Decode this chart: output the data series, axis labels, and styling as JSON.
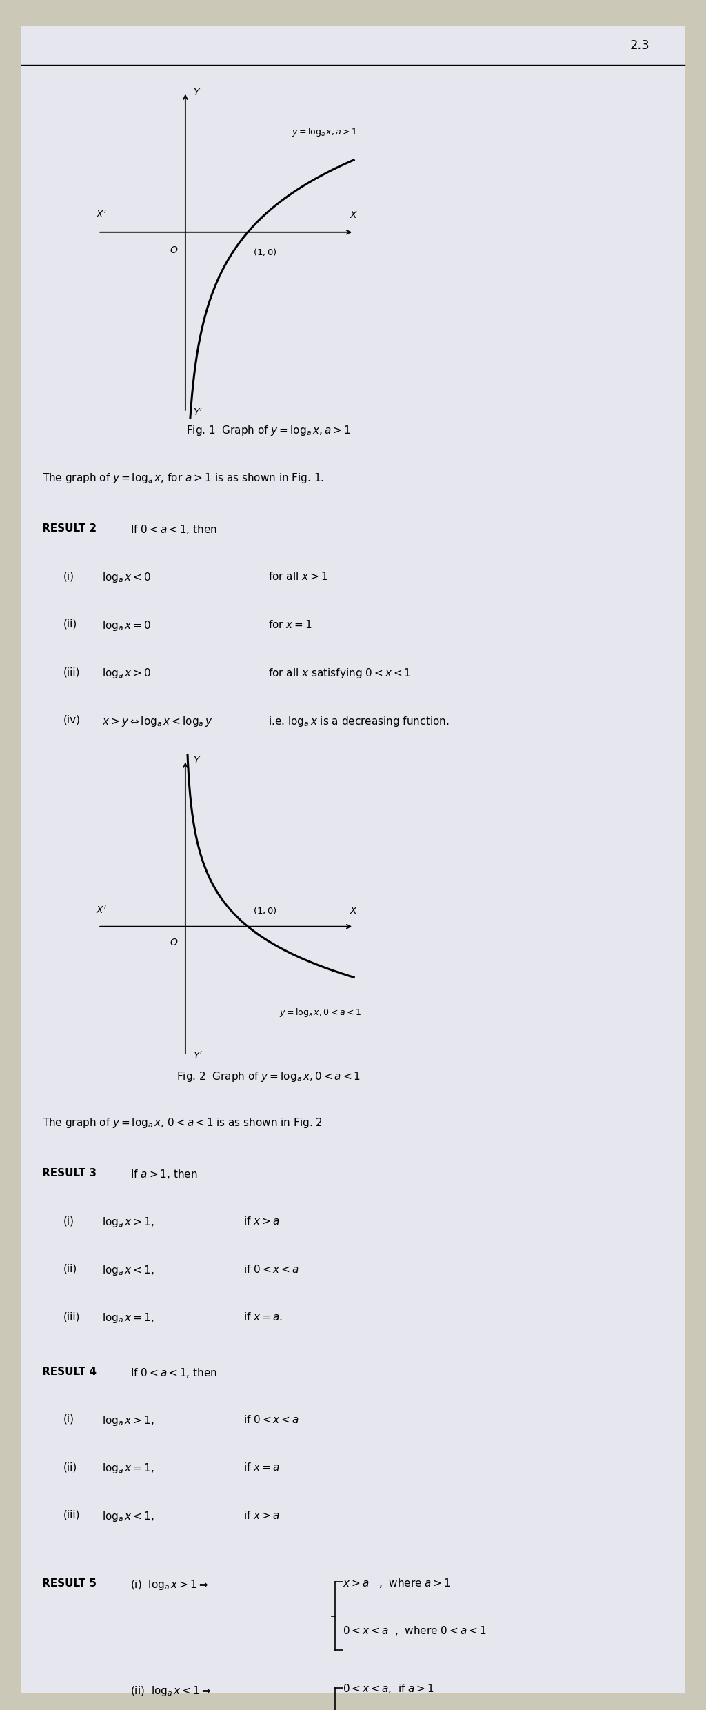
{
  "page_number": "2.3",
  "bg_color": "#ccc8b8",
  "paper_color": "#e6e6ee",
  "fig1_title": "Fig. 1  Graph of $y = \\log_a x, a > 1$",
  "fig2_title": "Fig. 2  Graph of $y = \\log_a x, 0 < a < 1$"
}
